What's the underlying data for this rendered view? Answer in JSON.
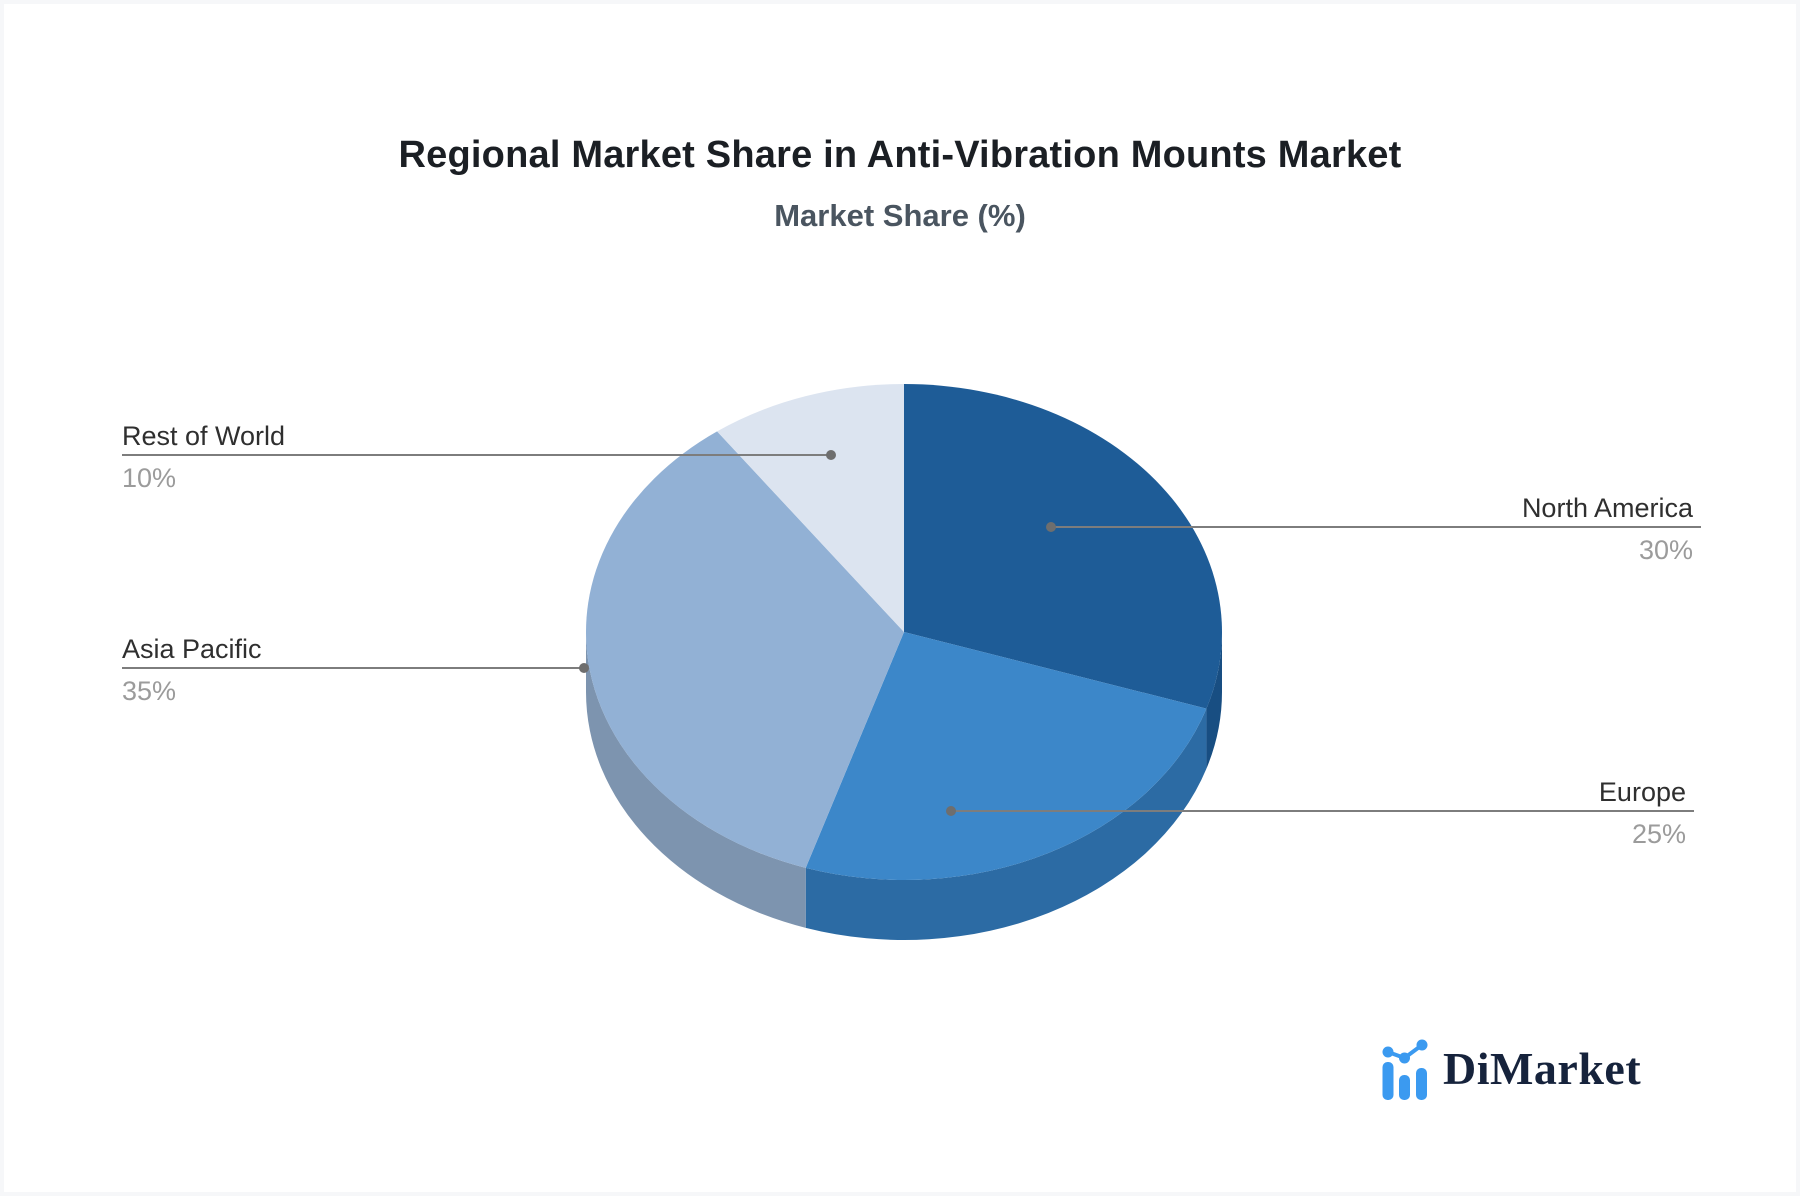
{
  "title": "Regional Market Share in Anti-Vibration Mounts Market",
  "subtitle": "Market Share (%)",
  "brand": {
    "name": "DiMarket",
    "accent_color": "#3b9af0",
    "text_color": "#16233c"
  },
  "style": {
    "background": "#ffffff",
    "title_color": "#1b1f24",
    "subtitle_color": "#4a5560",
    "label_color": "#2f2f2f",
    "percent_color": "#9b9b9b",
    "leader_line_color": "#7d7d7d",
    "leader_dot_color": "#6e6e6e"
  },
  "chart_data": {
    "type": "pie",
    "title": "Regional Market Share in Anti-Vibration Mounts Market",
    "subtitle": "Market Share (%)",
    "unit": "%",
    "style_3d": true,
    "start_angle_deg": 0,
    "clockwise": true,
    "legend_position": "callout-labels",
    "slices": [
      {
        "label": "North America",
        "value": 30,
        "display": "30%",
        "color": "#1e5c97",
        "side_color": "#184e82"
      },
      {
        "label": "Europe",
        "value": 25,
        "display": "25%",
        "color": "#3c87c9",
        "side_color": "#2c6ba4"
      },
      {
        "label": "Asia Pacific",
        "value": 35,
        "display": "35%",
        "color": "#92b1d5",
        "side_color": "#7d94af"
      },
      {
        "label": "Rest of World",
        "value": 10,
        "display": "10%",
        "color": "#dce4f0",
        "side_color": "#c9d3e2"
      }
    ]
  }
}
